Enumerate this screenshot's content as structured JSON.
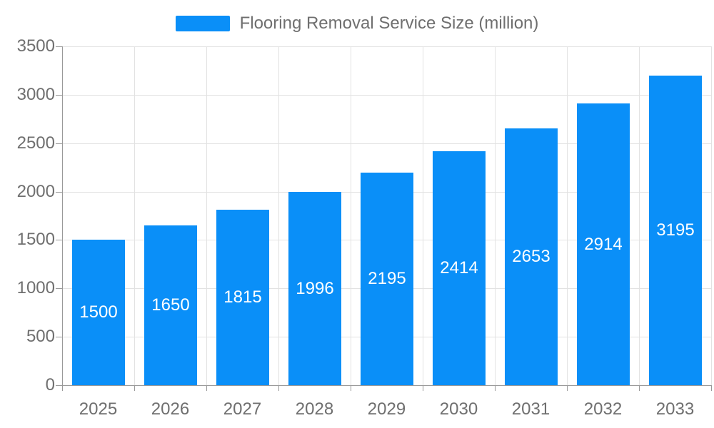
{
  "chart_data": {
    "type": "bar",
    "title": "Flooring Removal Service Size (million)",
    "categories": [
      "2025",
      "2026",
      "2027",
      "2028",
      "2029",
      "2030",
      "2031",
      "2032",
      "2033"
    ],
    "values": [
      1500,
      1650,
      1815,
      1996,
      2195,
      2414,
      2653,
      2914,
      3195
    ],
    "series_name": "Flooring Removal Service Size (million)",
    "xlabel": "",
    "ylabel": "",
    "ylim": [
      0,
      3500
    ],
    "yticks": [
      0,
      500,
      1000,
      1500,
      2000,
      2500,
      3000,
      3500
    ],
    "grid": true,
    "legend_position": "top-center",
    "value_label_position": "inside-center"
  },
  "colors": {
    "bar": "#0a8ff8",
    "axis_line": "#999999",
    "gridline": "#e2e2e2",
    "tick_text": "#6f6f6f",
    "legend_text": "#6f6f6f",
    "value_label": "#ffffff",
    "background": "#ffffff"
  }
}
